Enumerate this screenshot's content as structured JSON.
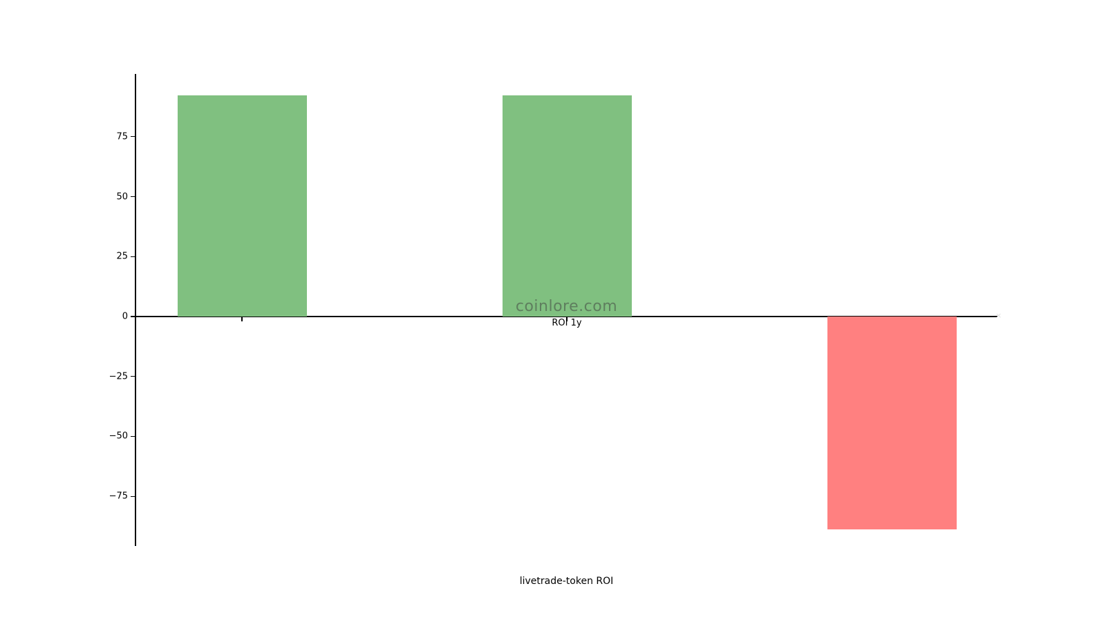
{
  "chart_data": {
    "type": "bar",
    "title": "livetrade-token ROI",
    "xlabel": "livetrade-token ROI",
    "ylabel": "",
    "categories": [
      "",
      "ROI 1y",
      ""
    ],
    "values": [
      92.4,
      92.4,
      -88.8
    ],
    "series": [
      {
        "name": "ROI",
        "values": [
          92.4,
          92.4,
          -88.8
        ]
      }
    ],
    "y_ticks": [
      75,
      50,
      25,
      0,
      -25,
      -50,
      -75
    ],
    "ylim": [
      -95.7,
      101.2
    ],
    "xlim_px_note": "three equally spaced bars, zero-line x-axis",
    "grid": false,
    "legend_position": "none",
    "positive_color": "#80c080",
    "negative_color": "#ff8080",
    "axis_color": "#000000",
    "x_tick_marks": [
      0,
      1
    ],
    "x_tick_labels": [
      "",
      "ROI 1y"
    ],
    "watermark": {
      "text": "coinlore.com",
      "color": "rgba(60,60,60,0.5)"
    },
    "axis_end_artifact": "×"
  }
}
